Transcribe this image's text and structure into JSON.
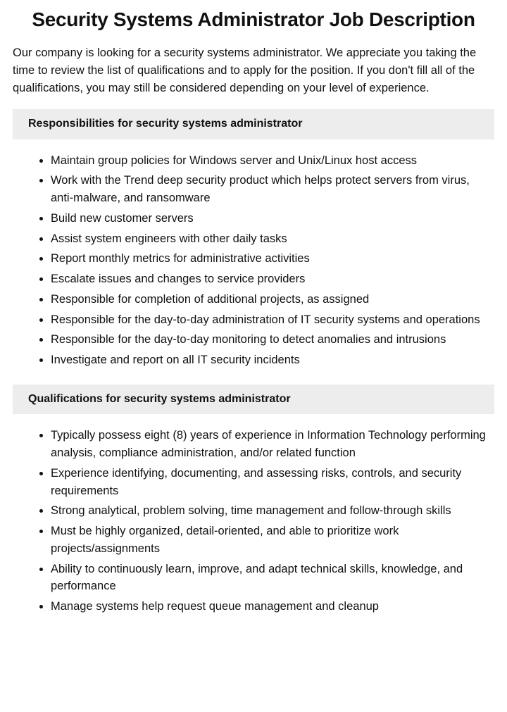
{
  "title": "Security Systems Administrator Job Description",
  "intro": "Our company is looking for a security systems administrator. We appreciate you taking the time to review the list of qualifications and to apply for the position. If you don't fill all of the qualifications, you may still be considered depending on your level of experience.",
  "sections": [
    {
      "header": "Responsibilities for security systems administrator",
      "items": [
        "Maintain group policies for Windows server and Unix/Linux host access",
        "Work with the Trend deep security product which helps protect servers from virus, anti-malware, and ransomware",
        "Build new customer servers",
        "Assist system engineers with other daily tasks",
        "Report monthly metrics for administrative activities",
        "Escalate issues and changes to service providers",
        "Responsible for completion of additional projects, as assigned",
        "Responsible for the day-to-day administration of IT security systems and operations",
        "Responsible for the day-to-day monitoring to detect anomalies and intrusions",
        "Investigate and report on all IT security incidents"
      ]
    },
    {
      "header": "Qualifications for security systems administrator",
      "items": [
        "Typically possess eight (8) years of experience in Information Technology performing analysis, compliance administration, and/or related function",
        "Experience identifying, documenting, and assessing risks, controls, and security requirements",
        "Strong analytical, problem solving, time management and follow-through skills",
        "Must be highly organized, detail-oriented, and able to prioritize work projects/assignments",
        "Ability to continuously learn, improve, and adapt technical skills, knowledge, and performance",
        "Manage systems help request queue management and cleanup"
      ]
    }
  ],
  "styles": {
    "background_color": "#ffffff",
    "text_color": "#111111",
    "header_background": "#ededed",
    "title_fontsize": 28,
    "body_fontsize": 16.5,
    "section_header_fontsize": 16
  }
}
